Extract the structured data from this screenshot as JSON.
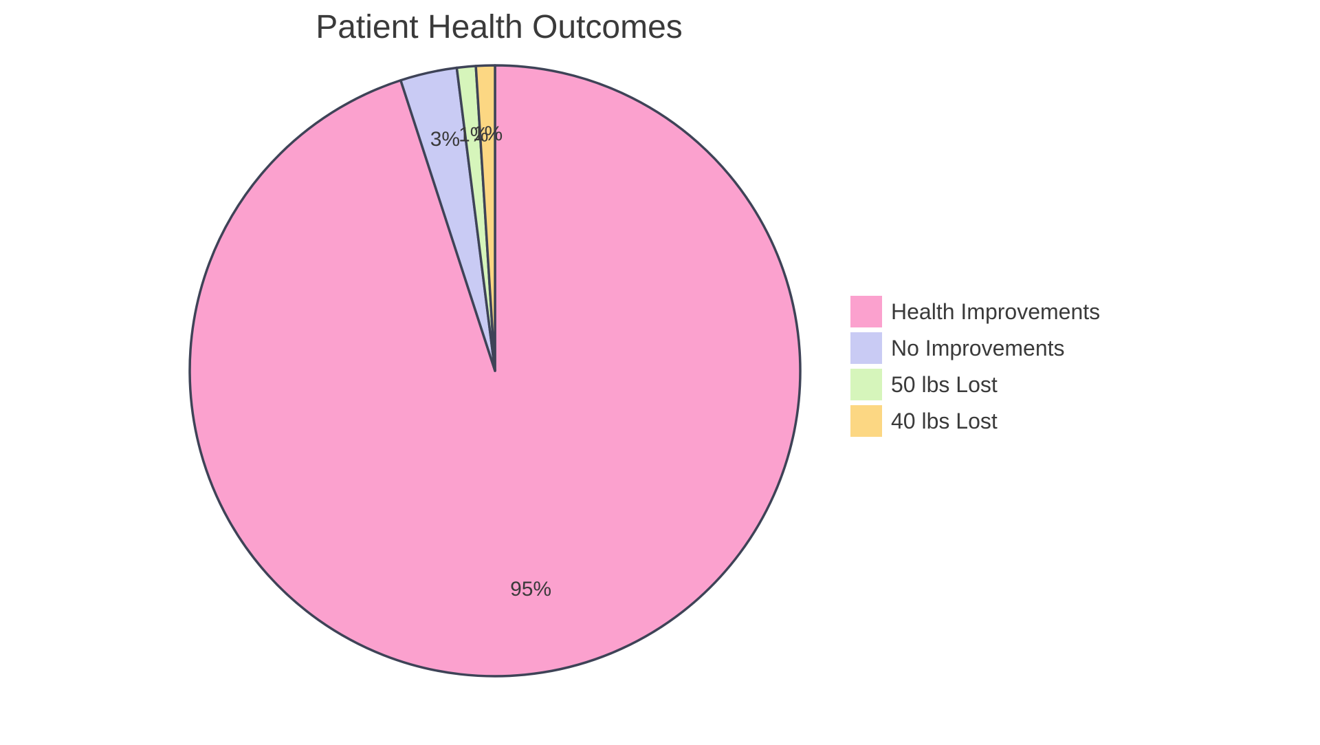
{
  "chart_data": {
    "type": "pie",
    "title": "Patient Health Outcomes",
    "labels": [
      "Health Improvements",
      "No Improvements",
      "50 lbs Lost",
      "40 lbs Lost"
    ],
    "values": [
      95,
      3,
      1,
      1
    ],
    "percent_labels": [
      "95%",
      "3%",
      "1%",
      "1%"
    ],
    "colors": [
      "#FBA1CE",
      "#C9CBF4",
      "#D6F5BB",
      "#FCD783"
    ],
    "edge_color": "#3E4357",
    "text_color": "#3A3A3A",
    "start_angle": 90,
    "direction": "clockwise",
    "legend_position": "right",
    "grid": "off"
  }
}
